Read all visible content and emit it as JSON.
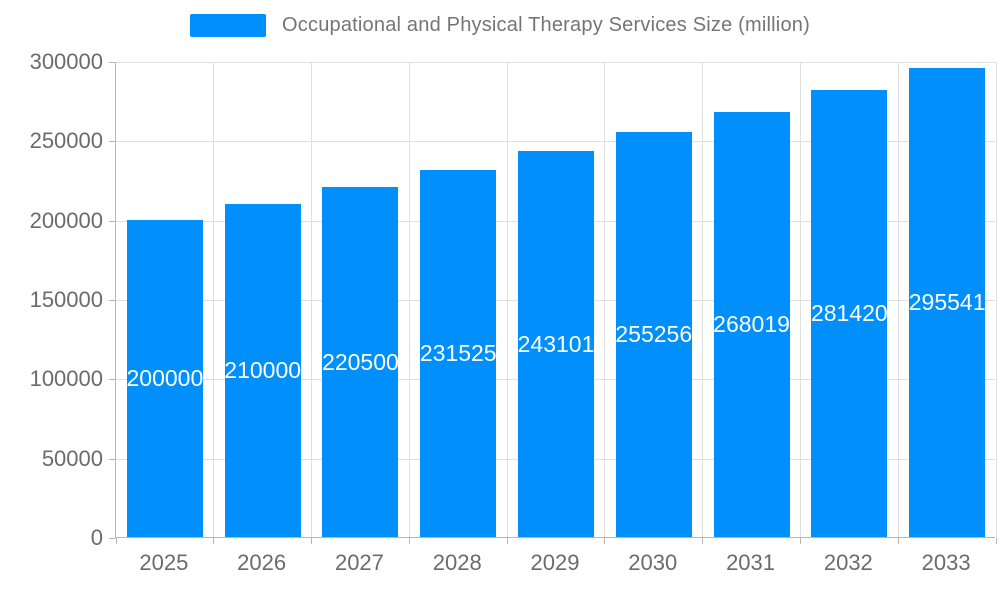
{
  "legend": {
    "label": "Occupational and Physical Therapy Services Size (million)"
  },
  "chart_data": {
    "type": "bar",
    "title": "Occupational and Physical Therapy Services Size (million)",
    "categories": [
      "2025",
      "2026",
      "2027",
      "2028",
      "2029",
      "2030",
      "2031",
      "2032",
      "2033"
    ],
    "values": [
      200000,
      210000,
      220500,
      231525,
      243101,
      255256,
      268019,
      281420,
      295541
    ],
    "bar_labels": [
      "200000",
      "210000",
      "220500",
      "231525",
      "243101",
      "255256",
      "268019",
      "281420",
      "295541"
    ],
    "xlabel": "",
    "ylabel": "",
    "ylim": [
      0,
      300000
    ],
    "ytick_step": 50000,
    "ytick_labels": [
      "0",
      "50000",
      "100000",
      "150000",
      "200000",
      "250000",
      "300000"
    ],
    "grid": true,
    "legend_position": "top",
    "colors": {
      "bar": "#008FFB",
      "bar_label_text": "#ffffff",
      "axis_label_text": "#6b6b6b",
      "legend_text": "#757575",
      "gridline": "#e0e0e0",
      "axis_line": "#b6b6b6",
      "background": "#ffffff"
    }
  }
}
